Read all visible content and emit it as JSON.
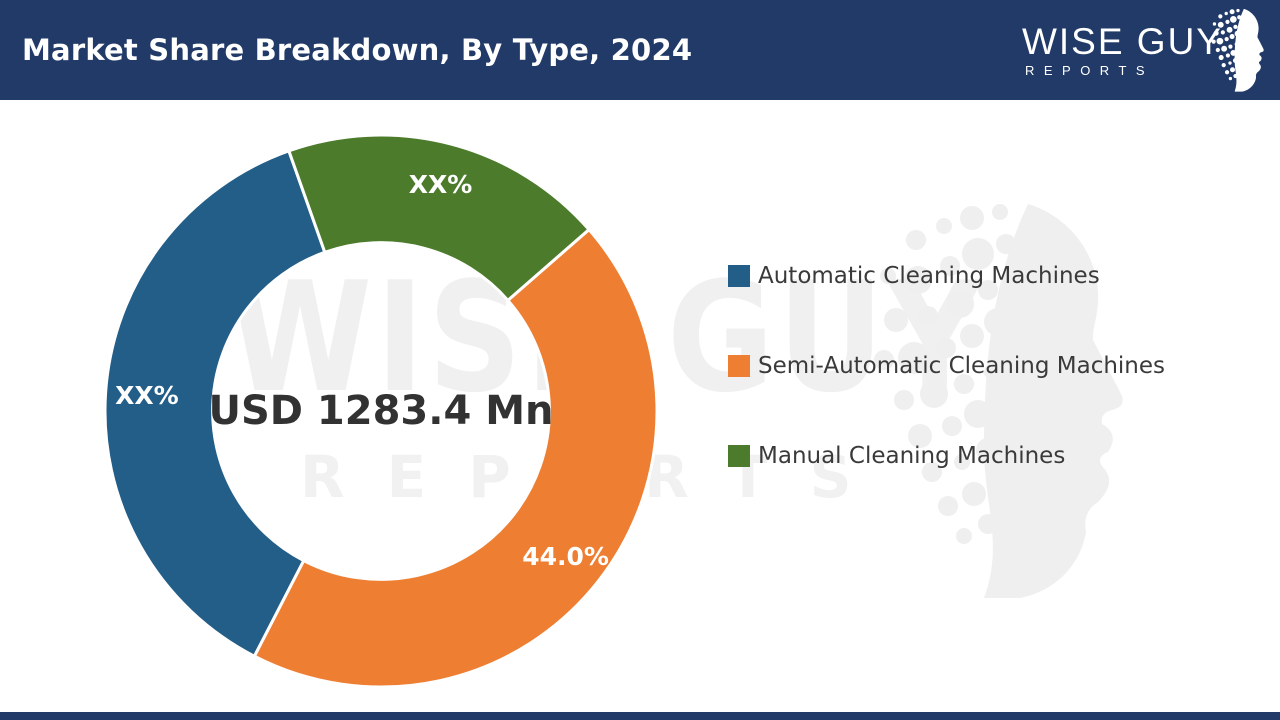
{
  "header": {
    "title": "Market Share Breakdown, By Type, 2024",
    "logo": {
      "line1": "WISE GUY",
      "line2": "REPORTS"
    }
  },
  "watermark": {
    "line1": "WISE GUY",
    "line2": "REPORTS"
  },
  "chart_data": {
    "type": "pie",
    "subtype": "donut",
    "title": "Market Share Breakdown, By Type, 2024",
    "center_label": "USD 1283.4 Mn",
    "start_angle_deg": 109.5,
    "direction": "counterclockwise",
    "inner_radius_ratio": 0.61,
    "legend_position": "right",
    "segments": [
      {
        "name": "Automatic Cleaning Machines",
        "display_label": "XX%",
        "value_pct": 37.0,
        "color": "#235E88"
      },
      {
        "name": "Semi-Automatic Cleaning Machines",
        "display_label": "44.0%",
        "value_pct": 44.0,
        "color": "#ED7E32"
      },
      {
        "name": "Manual Cleaning Machines",
        "display_label": "XX%",
        "value_pct": 19.0,
        "color": "#4B7B2B"
      }
    ]
  },
  "legend": {
    "items": [
      {
        "label": "Automatic Cleaning Machines"
      },
      {
        "label": "Semi-Automatic Cleaning Machines"
      },
      {
        "label": "Manual Cleaning Machines"
      }
    ]
  },
  "colors": {
    "header_bg": "#223A68",
    "footer_bg": "#223A68",
    "canvas_bg": "#FFFFFF",
    "center_text": "#323232",
    "legend_text": "#3A3A3A",
    "watermark": "#F0F0F0"
  }
}
